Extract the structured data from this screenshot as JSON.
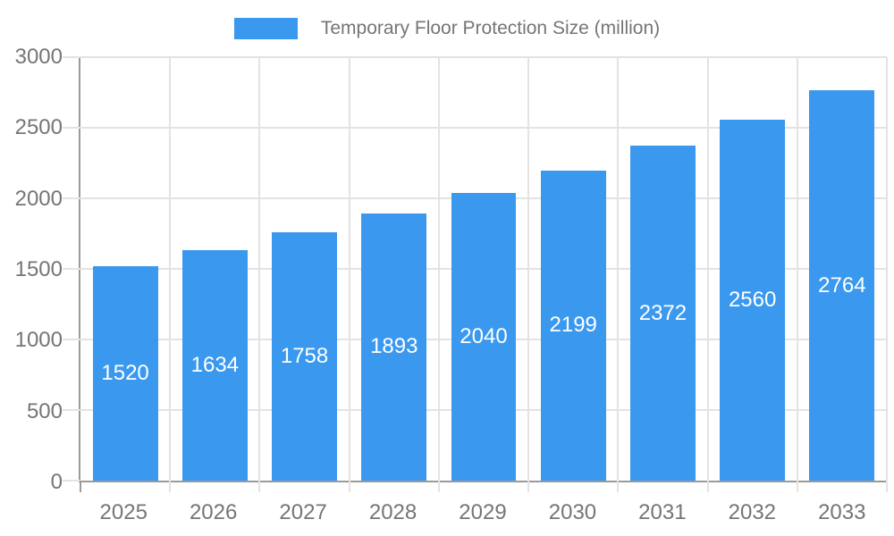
{
  "legend": {
    "label": "Temporary Floor Protection Size (million)"
  },
  "colors": {
    "bar": "#3a99ee",
    "grid": "#e3e3e3",
    "axis": "#9a9a9a",
    "text": "#757575",
    "value_label": "#ffffff",
    "background": "#ffffff"
  },
  "chart_data": {
    "type": "bar",
    "title": "Temporary Floor Protection Size (million)",
    "categories": [
      "2025",
      "2026",
      "2027",
      "2028",
      "2029",
      "2030",
      "2031",
      "2032",
      "2033"
    ],
    "values": [
      1520,
      1634,
      1758,
      1893,
      2040,
      2199,
      2372,
      2560,
      2764
    ],
    "xlabel": "",
    "ylabel": "",
    "ylim": [
      0,
      3000
    ],
    "yticks": [
      0,
      500,
      1000,
      1500,
      2000,
      2500,
      3000
    ],
    "grid": true,
    "legend_position": "top-center",
    "value_label_position": "inside-center"
  }
}
